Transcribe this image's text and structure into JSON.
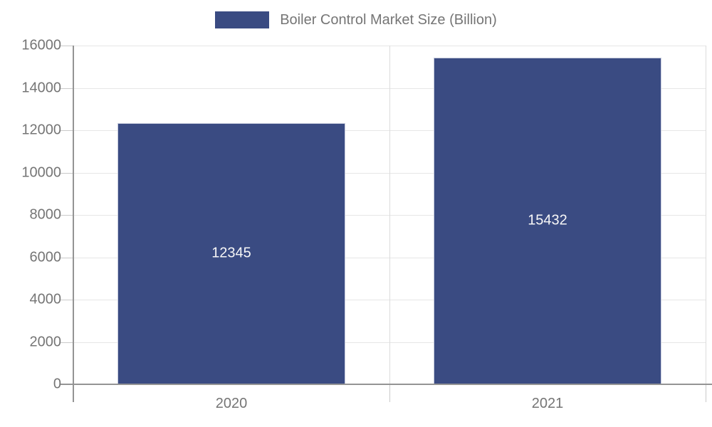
{
  "chart_data": {
    "type": "bar",
    "title": "",
    "legend": "Boiler Control Market Size (Billion)",
    "legend_position": "top-center",
    "categories": [
      "2020",
      "2021"
    ],
    "series": [
      {
        "name": "Boiler Control Market Size (Billion)",
        "values": [
          12345,
          15432
        ]
      }
    ],
    "value_labels": [
      "12345",
      "15432"
    ],
    "xlabel": "",
    "ylabel": "",
    "ylim": [
      0,
      16000
    ],
    "ytick_step": 2000,
    "grid": true,
    "colors": {
      "bar": "#3A4B82",
      "axis_text": "#757575",
      "value_label": "#F7F7F7",
      "grid_line": "#E6E6E6",
      "divider_line": "#DCDCDC",
      "tick_line": "#C9C9C9",
      "axis_line": "#949494"
    }
  }
}
